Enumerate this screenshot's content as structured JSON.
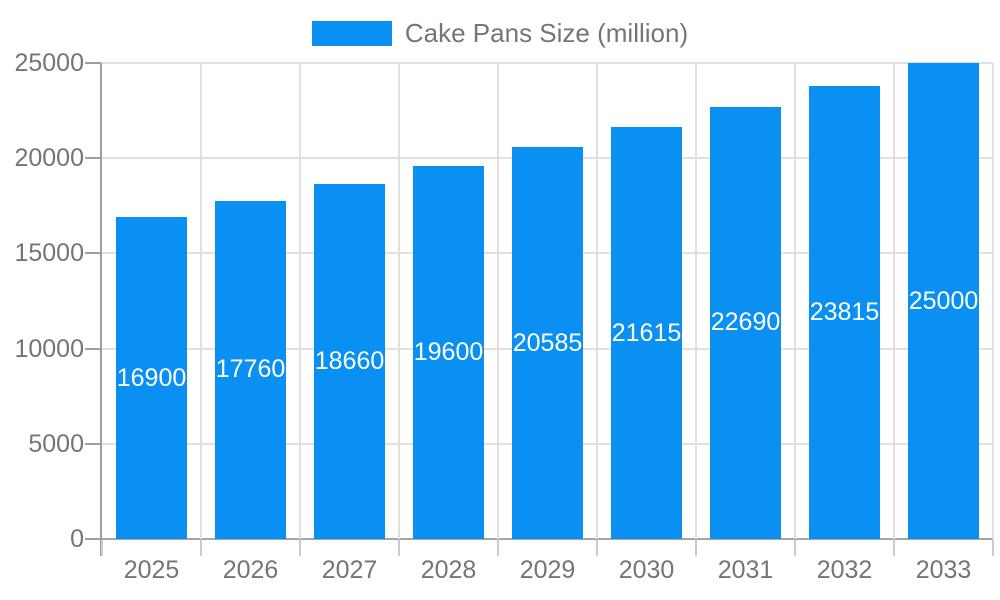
{
  "chart_data": {
    "type": "bar",
    "title": "",
    "legend": {
      "label": "Cake Pans Size (million)",
      "position": "top-center"
    },
    "categories": [
      "2025",
      "2026",
      "2027",
      "2028",
      "2029",
      "2030",
      "2031",
      "2032",
      "2033"
    ],
    "series": [
      {
        "name": "Cake Pans Size (million)",
        "values": [
          16900,
          17760,
          18660,
          19600,
          20585,
          21615,
          22690,
          23815,
          25000
        ]
      }
    ],
    "bar_labels": [
      "16900",
      "17760",
      "18660",
      "19600",
      "20585",
      "21615",
      "22690",
      "23815",
      "25000"
    ],
    "xlabel": "",
    "ylabel": "",
    "ylim": [
      0,
      25000
    ],
    "yticks": [
      0,
      5000,
      10000,
      15000,
      20000,
      25000
    ],
    "ytick_labels": [
      "0",
      "5000",
      "10000",
      "15000",
      "20000",
      "25000"
    ],
    "grid": true,
    "colors": {
      "bar": "#0a90f2",
      "bar_label_text": "#ffffff",
      "axis_text": "#757575",
      "legend_text": "#757575",
      "gridline": "#e0e0e0",
      "axis_line": "#9e9e9e",
      "background": "#ffffff"
    }
  }
}
